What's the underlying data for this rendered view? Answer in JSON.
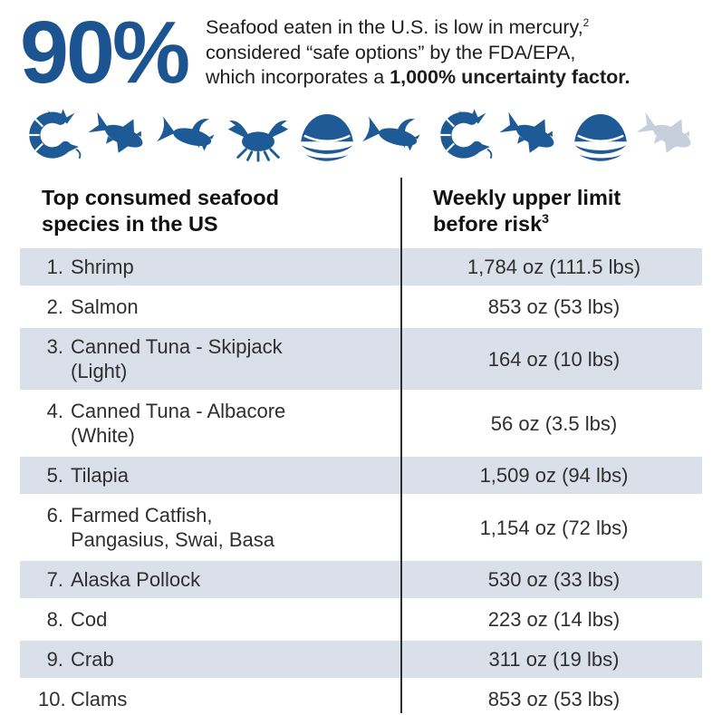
{
  "colors": {
    "brand_blue": "#1C5391",
    "icon_blue": "#1E5B96",
    "icon_light": "#C6CFDB",
    "row_shade": "#D9E0EA"
  },
  "header": {
    "stat": "90%",
    "line1": "Seafood eaten in the U.S. is low in mercury,",
    "line1_sup": "2",
    "line2": "considered “safe options” by the FDA/EPA,",
    "line3_prefix": "which incorporates a ",
    "line3_bold": "1,000% uncertainty factor."
  },
  "icon_row": [
    {
      "type": "shrimp",
      "shade": "dark"
    },
    {
      "type": "salmon",
      "shade": "dark"
    },
    {
      "type": "tuna",
      "shade": "dark"
    },
    {
      "type": "crab",
      "shade": "dark"
    },
    {
      "type": "clam",
      "shade": "dark"
    },
    {
      "type": "tuna",
      "shade": "dark"
    },
    {
      "type": "shrimp",
      "shade": "dark"
    },
    {
      "type": "salmon",
      "shade": "dark"
    },
    {
      "type": "clam",
      "shade": "dark"
    },
    {
      "type": "salmon",
      "shade": "light"
    }
  ],
  "table": {
    "col1_lines": [
      "Top consumed seafood",
      "species in the US"
    ],
    "col2_lines": [
      "Weekly upper limit",
      "before risk"
    ],
    "col2_sup": "3",
    "rows": [
      {
        "num": "1.",
        "species_lines": [
          "Shrimp"
        ],
        "limit": "1,784 oz (111.5 lbs)"
      },
      {
        "num": "2.",
        "species_lines": [
          "Salmon"
        ],
        "limit": "853 oz (53 lbs)"
      },
      {
        "num": "3.",
        "species_lines": [
          "Canned Tuna - Skipjack",
          "(Light)"
        ],
        "limit": "164 oz (10 lbs)"
      },
      {
        "num": "4.",
        "species_lines": [
          "Canned Tuna - Albacore",
          "(White)"
        ],
        "limit": "56 oz (3.5 lbs)"
      },
      {
        "num": "5.",
        "species_lines": [
          "Tilapia"
        ],
        "limit": "1,509 oz (94 lbs)"
      },
      {
        "num": "6.",
        "species_lines": [
          "Farmed Catfish,",
          "Pangasius, Swai, Basa"
        ],
        "limit": "1,154 oz (72 lbs)"
      },
      {
        "num": "7.",
        "species_lines": [
          "Alaska Pollock"
        ],
        "limit": "530 oz (33 lbs)"
      },
      {
        "num": "8.",
        "species_lines": [
          "Cod"
        ],
        "limit": "223 oz (14 lbs)"
      },
      {
        "num": "9.",
        "species_lines": [
          "Crab"
        ],
        "limit": "311 oz (19 lbs)"
      },
      {
        "num": "10.",
        "species_lines": [
          "Clams"
        ],
        "limit": "853 oz (53 lbs)"
      }
    ]
  },
  "chart_data": {
    "type": "table",
    "title": "90% — Seafood eaten in the U.S. is low in mercury, considered “safe options” by the FDA/EPA, which incorporates a 1,000% uncertainty factor.",
    "columns": [
      "Top consumed seafood species in the US",
      "Weekly upper limit before risk"
    ],
    "rows": [
      [
        "Shrimp",
        "1,784 oz (111.5 lbs)"
      ],
      [
        "Salmon",
        "853 oz (53 lbs)"
      ],
      [
        "Canned Tuna - Skipjack (Light)",
        "164 oz (10 lbs)"
      ],
      [
        "Canned Tuna - Albacore (White)",
        "56 oz (3.5 lbs)"
      ],
      [
        "Tilapia",
        "1,509 oz (94 lbs)"
      ],
      [
        "Farmed Catfish, Pangasius, Swai, Basa",
        "1,154 oz (72 lbs)"
      ],
      [
        "Alaska Pollock",
        "530 oz (33 lbs)"
      ],
      [
        "Cod",
        "223 oz (14 lbs)"
      ],
      [
        "Crab",
        "311 oz (19 lbs)"
      ],
      [
        "Clams",
        "853 oz (53 lbs)"
      ]
    ],
    "values_oz": [
      1784,
      853,
      164,
      56,
      1509,
      1154,
      530,
      223,
      311,
      853
    ],
    "values_lbs": [
      111.5,
      53,
      10,
      3.5,
      94,
      72,
      33,
      14,
      19,
      53
    ],
    "footnotes_referenced": [
      "2",
      "3"
    ]
  }
}
